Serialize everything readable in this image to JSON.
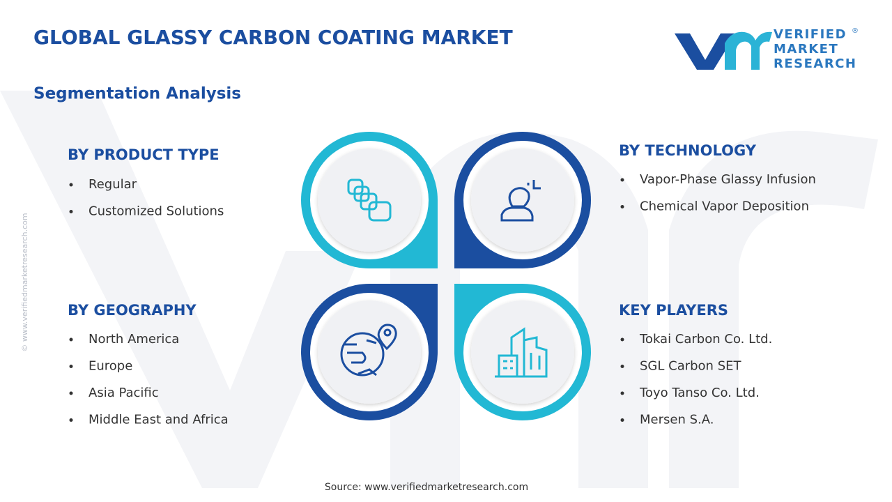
{
  "header": {
    "title": "GLOBAL GLASSY CARBON COATING MARKET",
    "subtitle": "Segmentation Analysis"
  },
  "logo": {
    "lines": [
      "VERIFIED",
      "MARKET",
      "RESEARCH"
    ],
    "mark": "®"
  },
  "segments": [
    {
      "heading": "BY PRODUCT TYPE",
      "items": [
        "Regular",
        "Customized Solutions"
      ]
    },
    {
      "heading": "BY TECHNOLOGY",
      "items": [
        "Vapor-Phase Glassy Infusion",
        "Chemical Vapor Deposition"
      ]
    },
    {
      "heading": "BY GEOGRAPHY",
      "items": [
        "North America",
        "Europe",
        "Asia Pacific",
        "Middle East and Africa"
      ]
    },
    {
      "heading": "KEY PLAYERS",
      "items": [
        "Tokai Carbon Co. Ltd.",
        "SGL Carbon SET",
        "Toyo Tanso Co. Ltd.",
        "Mersen S.A."
      ]
    }
  ],
  "footer": {
    "source": "Source: www.verifiedmarketresearch.com",
    "watermark": "© www.verifiedmarketresearch.com"
  }
}
